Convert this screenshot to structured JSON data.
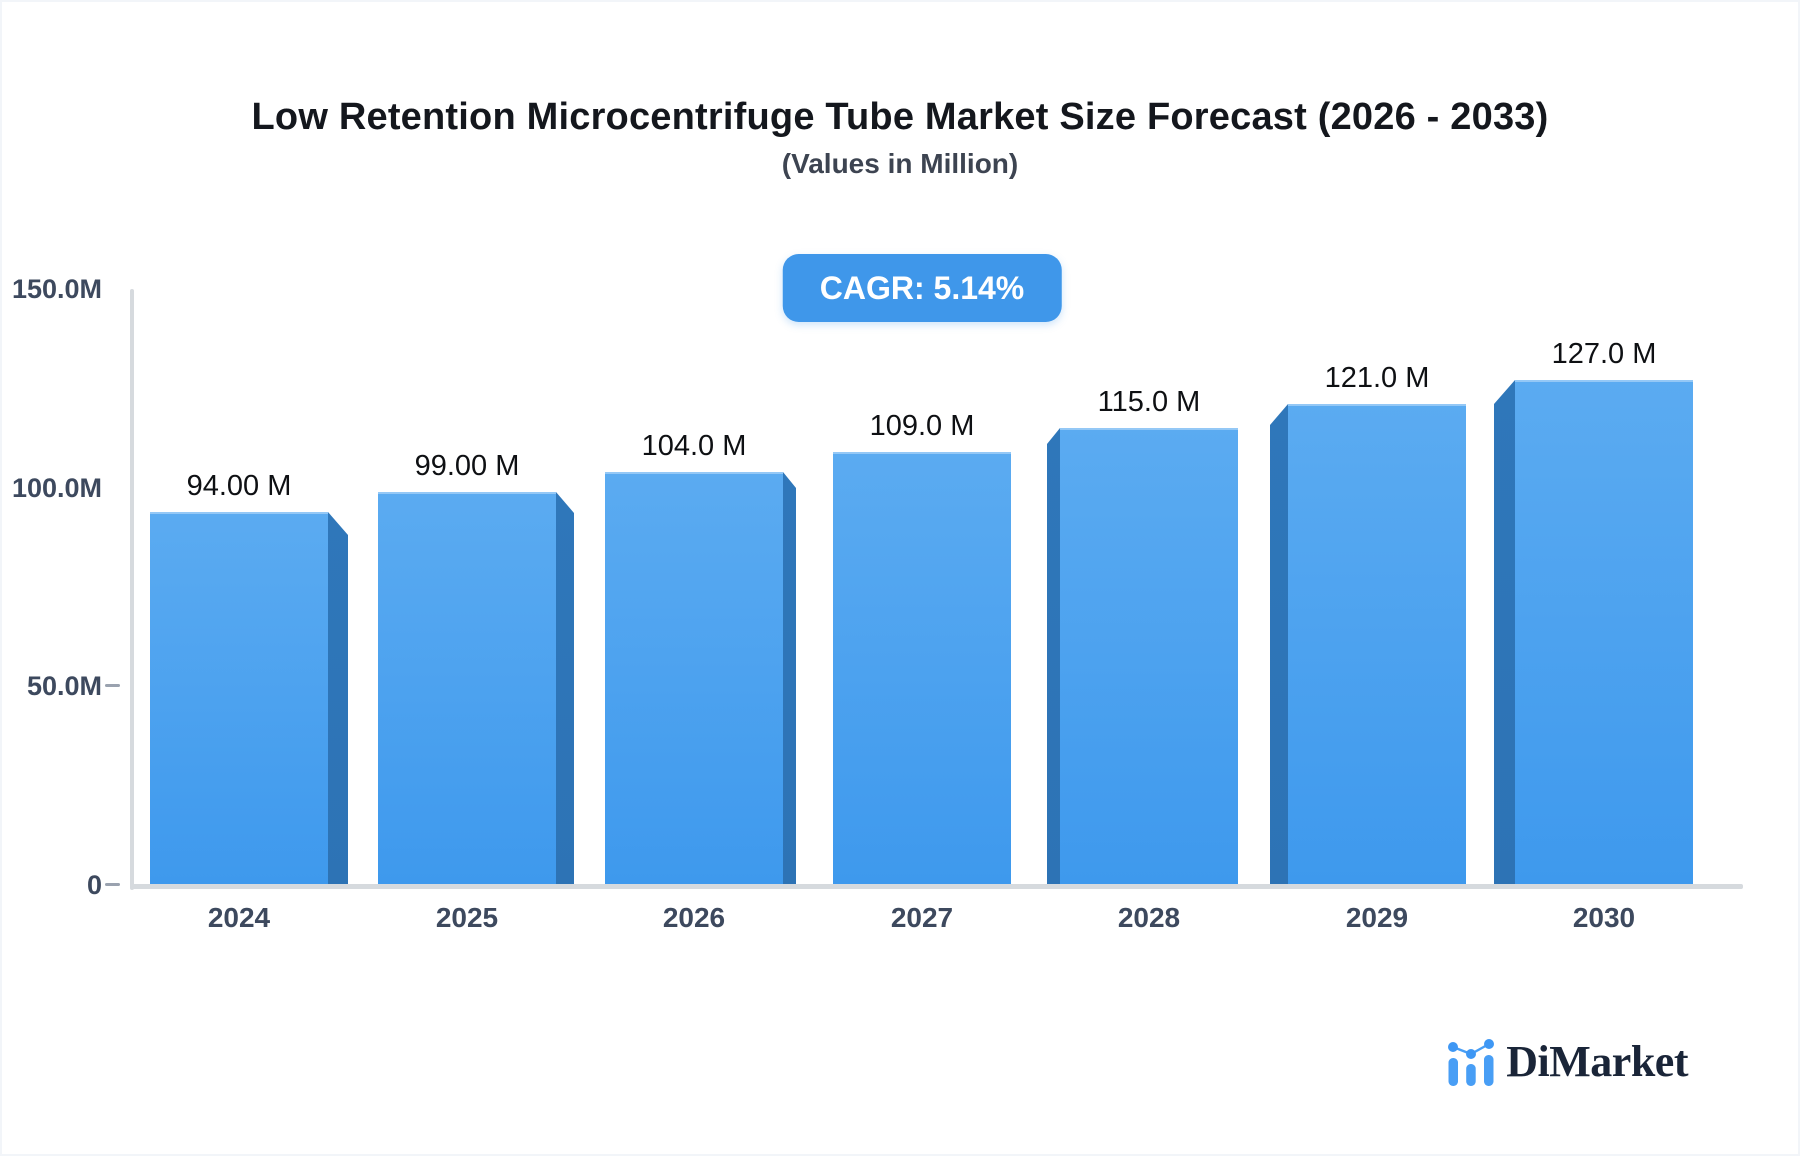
{
  "page": {
    "title": "Low Retention Microcentrifuge Tube Market Size Forecast (2026 - 2033)",
    "subtitle": "(Values in Million)",
    "cagr_badge": "CAGR: 5.14%"
  },
  "logo": {
    "text": "DiMarket",
    "icon": "mini-bar-chart-icon"
  },
  "colors": {
    "bar_face_top": "#5babf1",
    "bar_face_bottom": "#3e99ed",
    "bar_side_face": "#2d73b5",
    "badge_bg": "#3f97ea",
    "axis_line": "#d6dade",
    "tick_dash": "#9aa2af",
    "axis_label": "#3d495e",
    "value_label": "#0e1013",
    "title": "#14171d",
    "subtitle": "#3d4451",
    "brand_text": "#1a2538",
    "brand_blue": "#489ef5"
  },
  "chart_data": {
    "type": "bar",
    "title": "Low Retention Microcentrifuge Tube Market Size Forecast (2026 - 2033)",
    "subtitle": "(Values in Million)",
    "cagr": "CAGR: 5.14%",
    "categories": [
      "2024",
      "2025",
      "2026",
      "2027",
      "2028",
      "2029",
      "2030"
    ],
    "values": [
      94,
      99,
      104,
      109,
      115,
      121,
      127
    ],
    "value_labels": [
      "94.00 M",
      "99.00 M",
      "104.0 M",
      "109.0 M",
      "115.0 M",
      "121.0 M",
      "127.0 M"
    ],
    "unit": "Million",
    "y_ticks": [
      {
        "label": "150.0M",
        "value": 150,
        "dash": false
      },
      {
        "label": "100.0M",
        "value": 100,
        "dash": false
      },
      {
        "label": "50.0M",
        "value": 50,
        "dash": true
      },
      {
        "label": "0",
        "value": 0,
        "dash": true
      }
    ],
    "ylim": [
      0,
      150
    ],
    "xlabel": "",
    "ylabel": "",
    "grid": false,
    "legend": false,
    "style": "3d-perspective-bars"
  }
}
